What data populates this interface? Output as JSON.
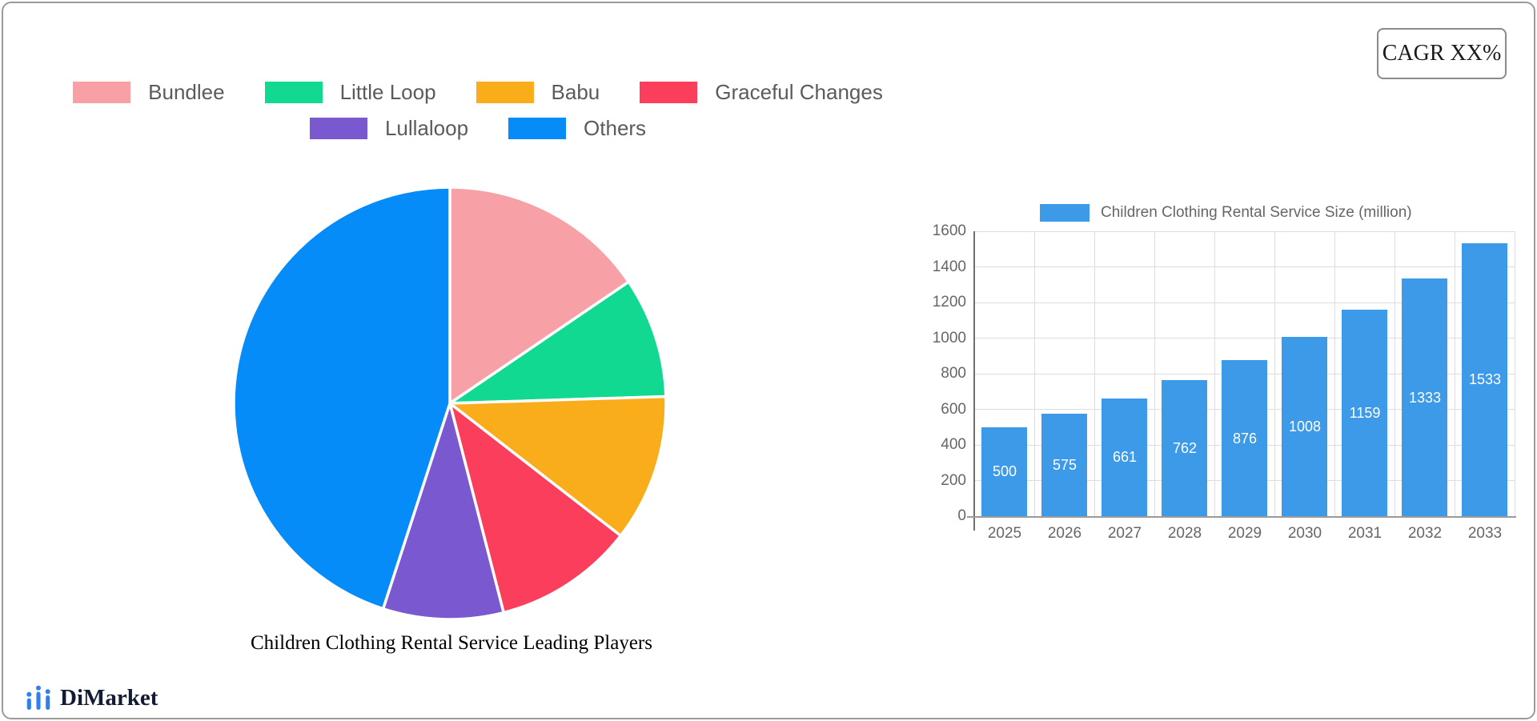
{
  "cagr_badge": "CAGR XX%",
  "logo": {
    "text": "DiMarket",
    "accent_color": "#2F80ED"
  },
  "chart_data": [
    {
      "type": "pie",
      "title": "Children Clothing Rental Service Leading Players",
      "labels": [
        "Bundlee",
        "Little Loop",
        "Babu",
        "Graceful Changes",
        "Lullaloop",
        "Others"
      ],
      "values": [
        15.5,
        9,
        11,
        10.5,
        9,
        45
      ],
      "unit": "percent (estimated from slice angles)",
      "colors": [
        "#F7A0A5",
        "#11D992",
        "#FAAD1B",
        "#FA3E5C",
        "#7A58D0",
        "#068CF8"
      ],
      "start_angle_deg": 0,
      "direction": "clockwise",
      "legend_position": "top",
      "legend_rows": [
        [
          0,
          1,
          2,
          3
        ],
        [
          4,
          5
        ]
      ],
      "slice_border_color": "#ffffff"
    },
    {
      "type": "bar",
      "legend": "Children Clothing Rental Service Size (million)",
      "categories": [
        "2025",
        "2026",
        "2027",
        "2028",
        "2029",
        "2030",
        "2031",
        "2032",
        "2033"
      ],
      "values": [
        500,
        575,
        661,
        762,
        876,
        1008,
        1159,
        1333,
        1533
      ],
      "bar_color": "#3D9AE9",
      "value_label_color": "#ffffff",
      "value_label_position": "inside-center",
      "ylim": [
        0,
        1600
      ],
      "yticks": [
        0,
        200,
        400,
        600,
        800,
        1000,
        1200,
        1400,
        1600
      ],
      "grid": true,
      "legend_position": "top"
    }
  ]
}
